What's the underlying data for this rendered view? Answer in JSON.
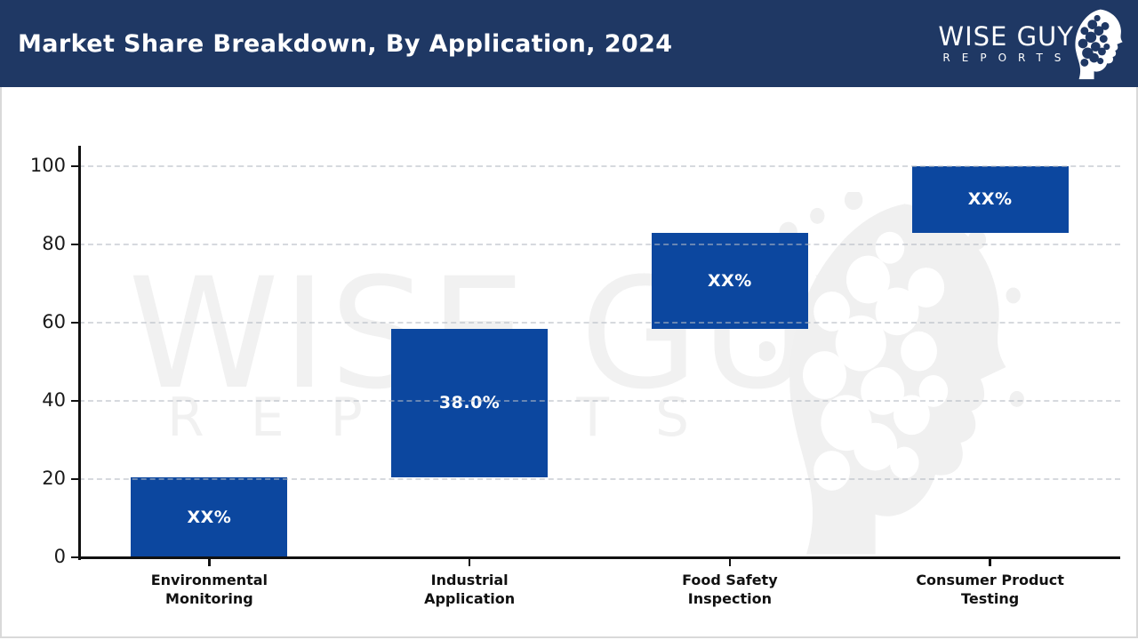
{
  "header": {
    "title": "Market Share Breakdown, By Application, 2024",
    "logo": {
      "name_top": "WISE GUY",
      "name_bottom": "REPORTS"
    }
  },
  "watermark": {
    "text_top": "WISE GUY",
    "text_bottom": "REPORTS"
  },
  "chart_data": {
    "type": "bar",
    "subtype": "floating-waterfall-segments",
    "title": "Market Share Breakdown, By Application, 2024",
    "categories": [
      "Environmental\nMonitoring",
      "Industrial\nApplication",
      "Food Safety\nInspection",
      "Consumer Product\nTesting"
    ],
    "segments": [
      {
        "category": "Environmental Monitoring",
        "start": 0,
        "end": 20.5,
        "label": "XX%"
      },
      {
        "category": "Industrial Application",
        "start": 20.5,
        "end": 58.5,
        "label": "38.0%"
      },
      {
        "category": "Food Safety Inspection",
        "start": 58.5,
        "end": 83,
        "label": "XX%"
      },
      {
        "category": "Consumer Product Testing",
        "start": 83,
        "end": 100,
        "label": "XX%"
      }
    ],
    "yticks": [
      0,
      20,
      40,
      60,
      80,
      100
    ],
    "ylim": [
      0,
      105
    ],
    "xlabel": "",
    "ylabel": "",
    "grid": {
      "horizontal": true,
      "style": "dashed",
      "over_bars": true
    },
    "colors": {
      "bar": "#0c479f",
      "bar_label": "#ffffff",
      "axis": "#111111",
      "grid": "#c8ccd4",
      "header_bg": "#1f3864",
      "watermark": "#f1f1f1"
    }
  }
}
